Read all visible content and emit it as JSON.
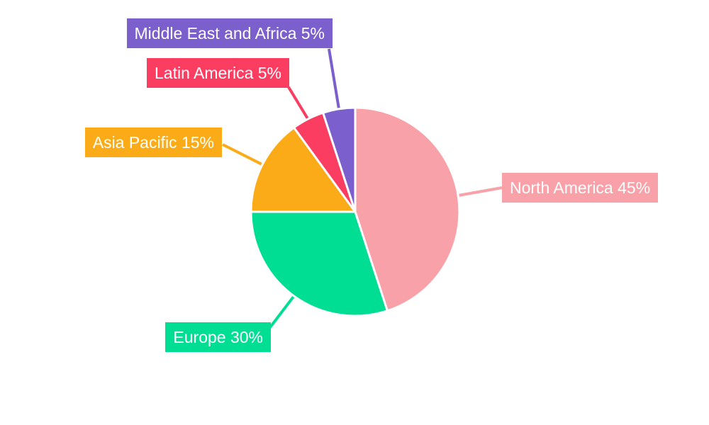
{
  "chart_data": {
    "type": "pie",
    "title": "",
    "background": "#FFFFFF",
    "direction": "clockwise",
    "start_angle": "top",
    "label_style": "external colored boxes with white text and slice-colored leader lines",
    "slices": [
      {
        "key": "north-america",
        "label": "North America",
        "value": 45,
        "display": "North America 45%",
        "color": "#F8A1A8"
      },
      {
        "key": "europe",
        "label": "Europe",
        "value": 30,
        "display": "Europe 30%",
        "color": "#00DE94"
      },
      {
        "key": "asia-pacific",
        "label": "Asia Pacific",
        "value": 15,
        "display": "Asia Pacific 15%",
        "color": "#FBAB18"
      },
      {
        "key": "latin-america",
        "label": "Latin America",
        "value": 5,
        "display": "Latin America 5%",
        "color": "#FB3D61"
      },
      {
        "key": "middle-east-africa",
        "label": "Middle East and Africa",
        "value": 5,
        "display": "Middle East and Africa 5%",
        "color": "#7B5FCD"
      }
    ]
  }
}
